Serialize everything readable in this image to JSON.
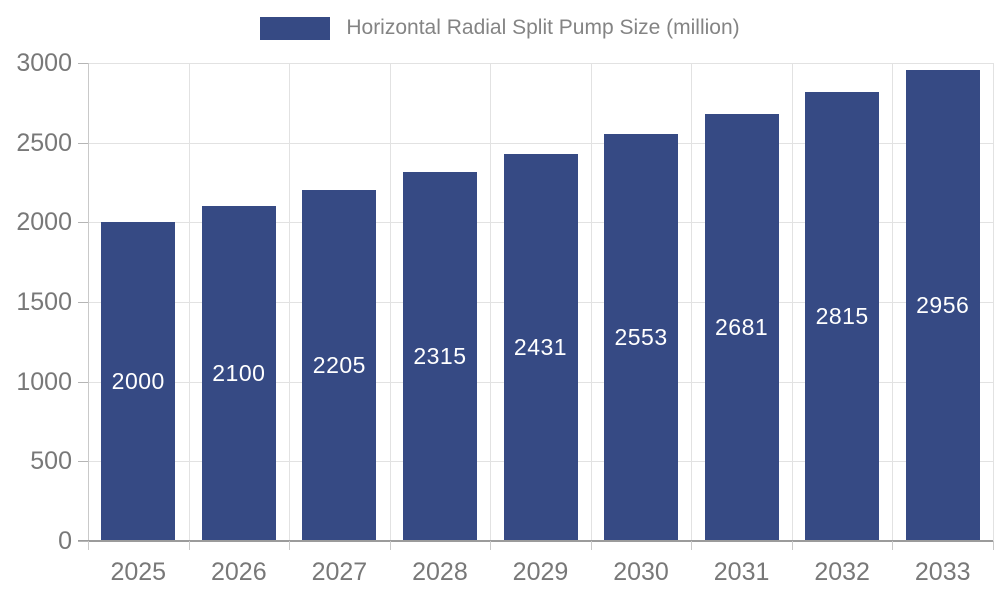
{
  "chart_data": {
    "type": "bar",
    "legend": "Horizontal Radial Split Pump Size (million)",
    "categories": [
      "2025",
      "2026",
      "2027",
      "2028",
      "2029",
      "2030",
      "2031",
      "2032",
      "2033"
    ],
    "values": [
      2000,
      2100,
      2205,
      2315,
      2431,
      2553,
      2681,
      2815,
      2956
    ],
    "ylim": [
      0,
      3000
    ],
    "yticks": [
      0,
      500,
      1000,
      1500,
      2000,
      2500,
      3000
    ],
    "grid": true,
    "legend_position": "top",
    "bar_color": "#364A84",
    "value_label_color": "#ffffff",
    "axis_text_color": "#787878",
    "legend_text_color": "#848484",
    "grid_color": "#e2e2e2"
  }
}
